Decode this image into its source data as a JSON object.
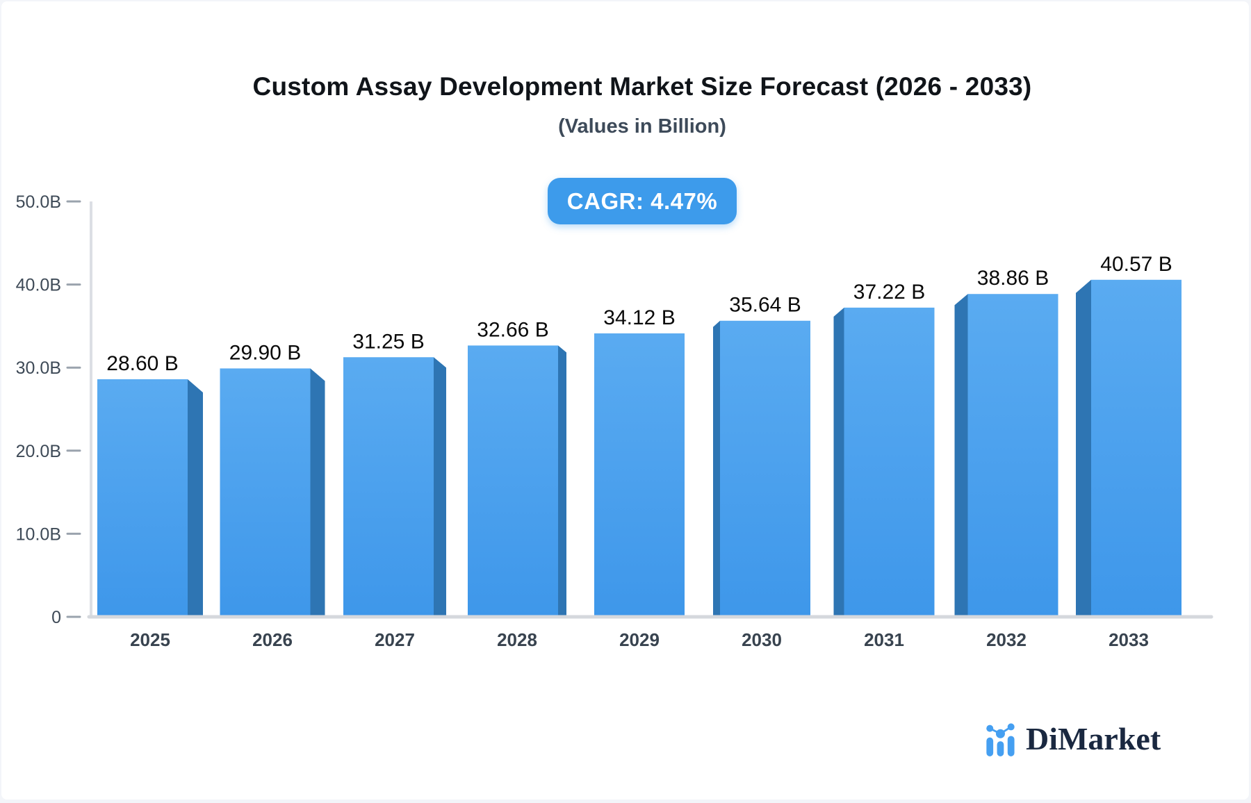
{
  "header": {
    "title": "Custom Assay Development Market Size Forecast (2026 - 2033)",
    "subtitle": "(Values in Billion)"
  },
  "badge": {
    "label": "CAGR: 4.47%",
    "background_color": "#3d9beb",
    "text_color": "#ffffff"
  },
  "chart_data": {
    "type": "bar",
    "title": "Custom Assay Development Market Size Forecast (2026 - 2033)",
    "subtitle": "(Values in Billion)",
    "categories": [
      "2025",
      "2026",
      "2027",
      "2028",
      "2029",
      "2030",
      "2031",
      "2032",
      "2033"
    ],
    "values": [
      28.6,
      29.9,
      31.25,
      32.66,
      34.12,
      35.64,
      37.22,
      38.86,
      40.57
    ],
    "value_labels": [
      "28.60 B",
      "29.90 B",
      "31.25 B",
      "32.66 B",
      "34.12 B",
      "35.64 B",
      "37.22 B",
      "38.86 B",
      "40.57 B"
    ],
    "unit": "Billion",
    "ylim": [
      0,
      50
    ],
    "y_ticks": [
      {
        "value": 0,
        "label": "0"
      },
      {
        "value": 10,
        "label": "10.0B"
      },
      {
        "value": 20,
        "label": "20.0B"
      },
      {
        "value": 30,
        "label": "30.0B"
      },
      {
        "value": 40,
        "label": "40.0B"
      },
      {
        "value": 50,
        "label": "50.0B"
      }
    ],
    "grid": false,
    "legend": false,
    "bar_style": "3d-extruded",
    "colors": {
      "bar_face_top": "#5aabf1",
      "bar_face_bottom": "#3e97ea",
      "bar_side": "#2e75b3",
      "axis_line": "#dcdfe4",
      "baseline": "#d5d8dd",
      "tick_mark": "#9aa3ad",
      "tick_label": "#3e4a57",
      "category_label": "#38434f",
      "value_label": "#0a0a0a"
    }
  },
  "logo": {
    "text": "DiMarket",
    "text_color": "#1a2840",
    "icon": "bar-chart-logo-icon",
    "icon_color": "#459ff1"
  }
}
